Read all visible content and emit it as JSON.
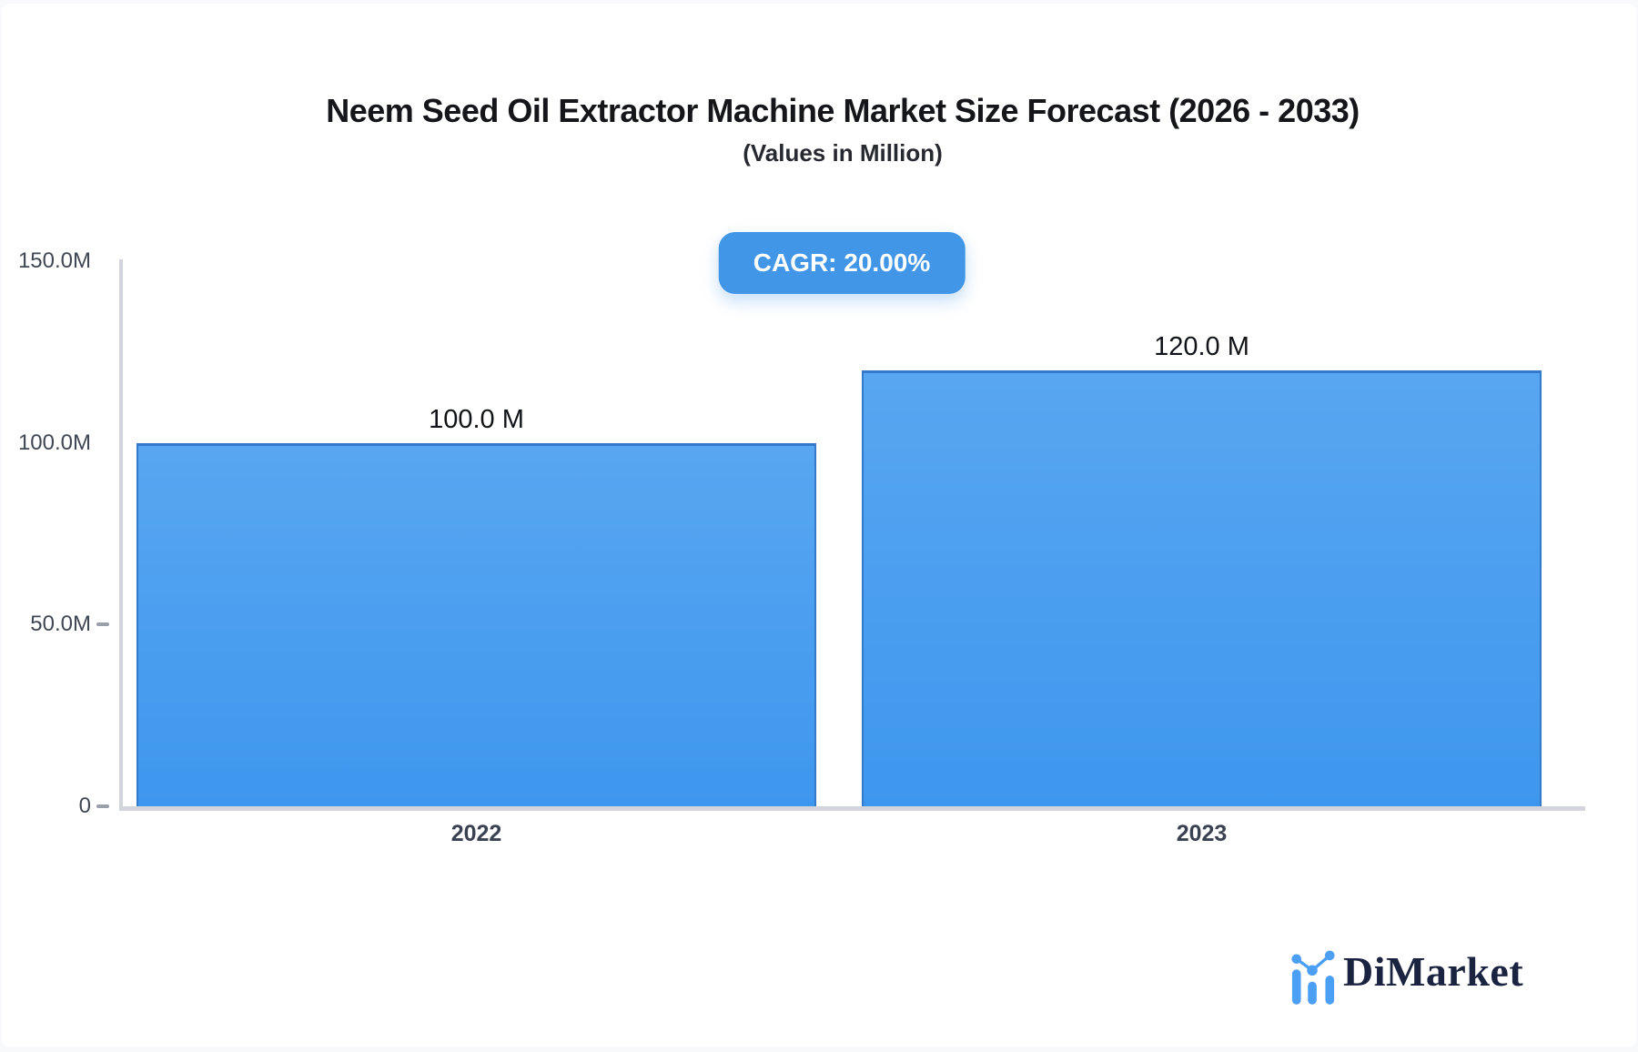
{
  "header": {
    "title": "Neem Seed Oil Extractor Machine Market Size Forecast (2026 - 2033)",
    "subtitle": "(Values in Million)",
    "cagr_badge": "CAGR: 20.00%"
  },
  "chart_data": {
    "type": "bar",
    "title": "Neem Seed Oil Extractor Machine Market Size Forecast (2026 - 2033)",
    "subtitle": "(Values in Million)",
    "cagr_percent": "20.00%",
    "unit": "Million",
    "categories": [
      "2022",
      "2023"
    ],
    "values": [
      100.0,
      120.0
    ],
    "value_labels": [
      "100.0 M",
      "120.0 M"
    ],
    "xlabel": "",
    "ylabel": "",
    "ylim": [
      0,
      150
    ],
    "yticks": [
      {
        "label": "150.0M",
        "value": 150,
        "dash": false
      },
      {
        "label": "100.0M",
        "value": 100,
        "dash": false
      },
      {
        "label": "50.0M",
        "value": 50,
        "dash": true
      },
      {
        "label": "0",
        "value": 0,
        "dash": true
      }
    ],
    "grid": false,
    "legend": "none",
    "colors": {
      "bar_gradient_top": "#58a6f1",
      "bar_gradient_bottom": "#3e97ee",
      "bar_border": "#3579ca",
      "axis": "#d2d6dc",
      "tick_dash": "#9aa0a9",
      "badge_background": "#4296e8",
      "badge_text": "#ffffff"
    }
  },
  "watermark": {
    "brand": "DiMarket",
    "icon": "bar-line-chart-icon",
    "brand_color": "#1a2340",
    "icon_color": "#4b9ff4"
  }
}
